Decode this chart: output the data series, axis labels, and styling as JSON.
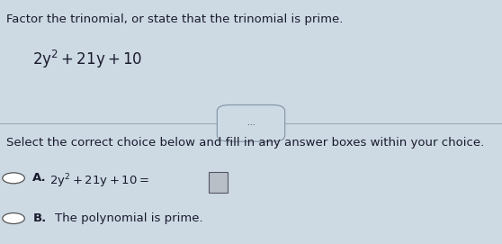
{
  "background_color": "#cddae4",
  "text_color": "#1a1a2e",
  "title_text": "Factor the trinomial, or state that the trinomial is prime.",
  "divider_dots": "...",
  "instruction": "Select the correct choice below and fill in any answer boxes within your choice.",
  "option_a_label": "A.",
  "option_b_label": "B.",
  "option_b_text": "The polynomial is prime.",
  "font_size_title": 9.5,
  "font_size_expr": 12,
  "font_size_instr": 9.5,
  "font_size_opts": 9.5,
  "answer_box_color": "#b8bfc7"
}
